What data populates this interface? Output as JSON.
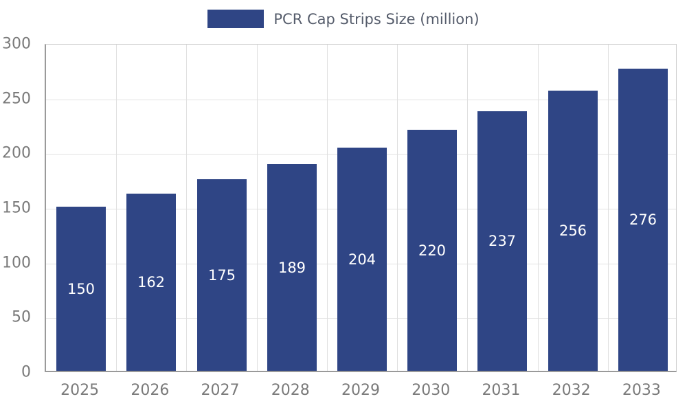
{
  "colors": {
    "bar": "#2f4585",
    "grid": "#e0e0e0",
    "axis": "#9a9a9a",
    "tick_text": "#7a7a7a",
    "legend_text": "#555c6b",
    "value_label_text": "#ffffff"
  },
  "legend": {
    "label": "PCR Cap Strips Size (million)"
  },
  "chart_data": {
    "type": "bar",
    "title": "PCR Cap Strips Size (million)",
    "categories": [
      "2025",
      "2026",
      "2027",
      "2028",
      "2029",
      "2030",
      "2031",
      "2032",
      "2033"
    ],
    "values": [
      150,
      162,
      175,
      189,
      204,
      220,
      237,
      256,
      276
    ],
    "xlabel": "",
    "ylabel": "",
    "ylim": [
      0,
      300
    ],
    "yticks": [
      0,
      50,
      100,
      150,
      200,
      250,
      300
    ],
    "grid": true,
    "legend_position": "top-center",
    "value_labels": "inside-middle"
  }
}
